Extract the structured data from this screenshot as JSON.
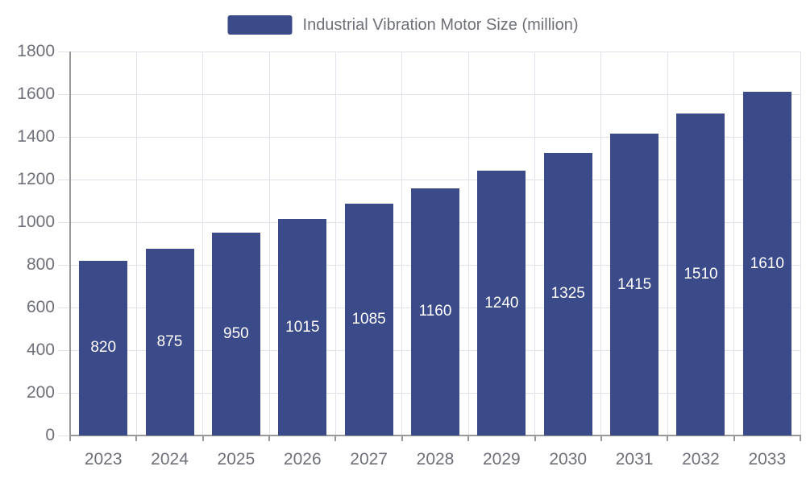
{
  "chart_data": {
    "type": "bar",
    "title": "Industrial Vibration Motor Size (million)",
    "legend_label": "Industrial Vibration Motor Size (million)",
    "legend_position": "top-center",
    "categories": [
      "2023",
      "2024",
      "2025",
      "2026",
      "2027",
      "2028",
      "2029",
      "2030",
      "2031",
      "2032",
      "2033"
    ],
    "series": [
      {
        "name": "Industrial Vibration Motor Size (million)",
        "values": [
          820,
          875,
          950,
          1015,
          1085,
          1160,
          1240,
          1325,
          1415,
          1510,
          1610
        ]
      }
    ],
    "xlabel": "",
    "ylabel": "",
    "ylim": [
      0,
      1800
    ],
    "ytick_step": 200,
    "ytick_labels": [
      "0",
      "200",
      "400",
      "600",
      "800",
      "1000",
      "1200",
      "1400",
      "1600",
      "1800"
    ],
    "grid": true,
    "value_labels": "inside-middle",
    "colors": {
      "bar": "#3B4A89",
      "grid": "#E0E3EA",
      "axis": "#999999",
      "tick_label": "#6E7079",
      "legend_text": "#6E7079",
      "value_label": "#FFFFFF",
      "background": "#FFFFFF"
    }
  }
}
